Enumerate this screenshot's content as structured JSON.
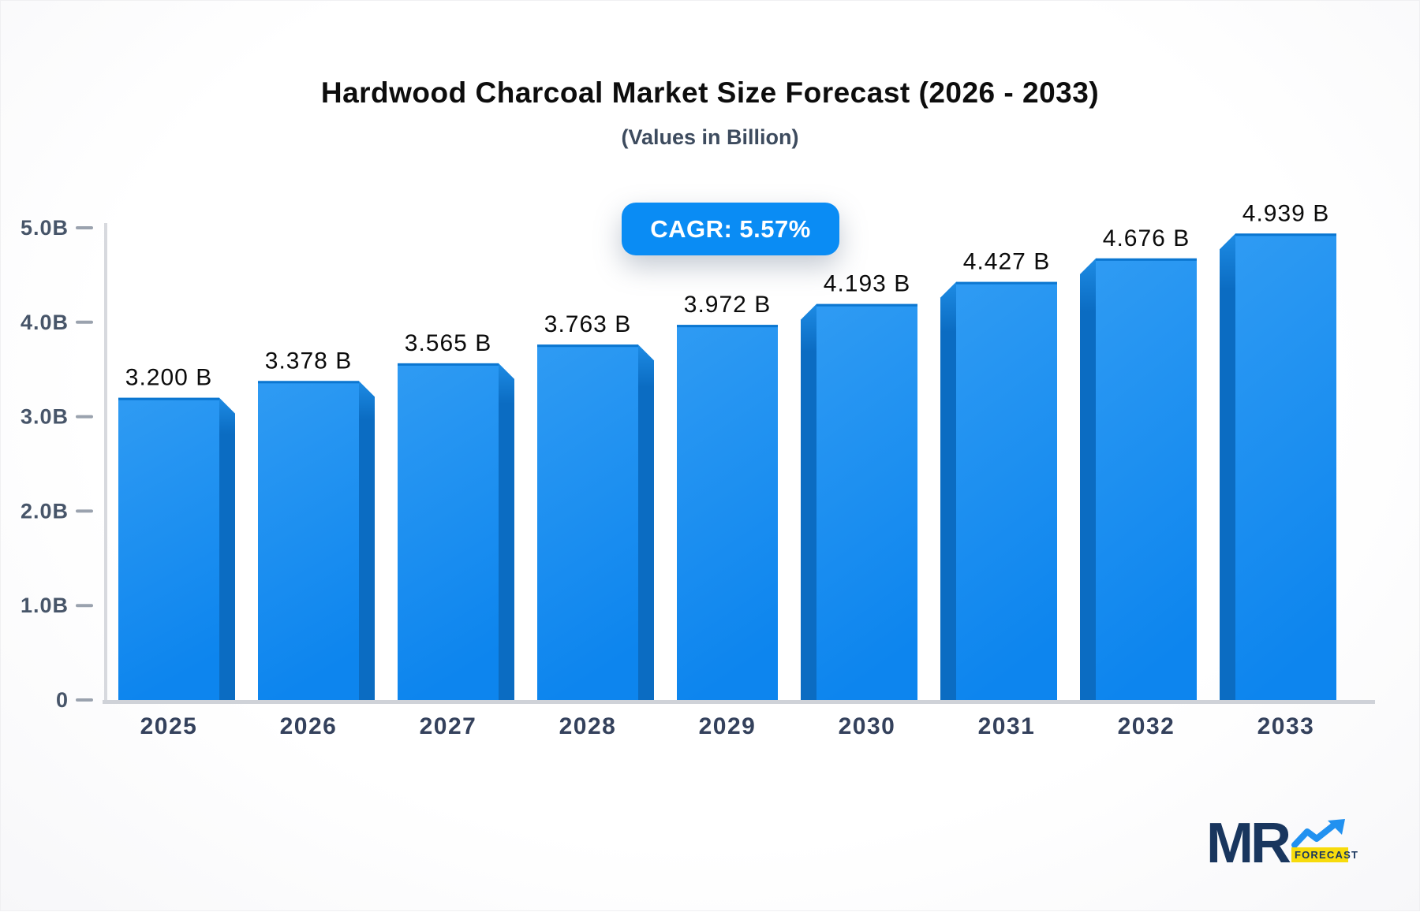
{
  "header": {
    "title": "Hardwood Charcoal Market Size Forecast (2026 - 2033)",
    "subtitle": "(Values in Billion)"
  },
  "badge": {
    "label": "CAGR: 5.57%"
  },
  "chart_data": {
    "type": "bar",
    "title": "Hardwood Charcoal Market Size Forecast (2026 - 2033)",
    "subtitle": "(Values in Billion)",
    "categories": [
      "2025",
      "2026",
      "2027",
      "2028",
      "2029",
      "2030",
      "2031",
      "2032",
      "2033"
    ],
    "values": [
      3.2,
      3.378,
      3.565,
      3.763,
      3.972,
      4.193,
      4.427,
      4.676,
      4.939
    ],
    "value_labels": [
      "3.200 B",
      "3.378 B",
      "3.565 B",
      "3.763 B",
      "3.972 B",
      "4.193 B",
      "4.427 B",
      "4.676 B",
      "4.939 B"
    ],
    "xlabel": "",
    "ylabel": "",
    "ylim": [
      0,
      5
    ],
    "yticks": [
      {
        "label": "5.0B",
        "value": 5.0
      },
      {
        "label": "4.0B",
        "value": 4.0
      },
      {
        "label": "3.0B",
        "value": 3.0
      },
      {
        "label": "2.0B",
        "value": 2.0
      },
      {
        "label": "1.0B",
        "value": 1.0
      },
      {
        "label": "0",
        "value": 0.0
      }
    ],
    "grid": false,
    "legend": "none",
    "annotation": "CAGR: 5.57%"
  },
  "colors": {
    "bar_face_top": "#2F9BF3",
    "bar_face_bottom": "#0D85EE",
    "bar_side_top": "#1D8BE4",
    "bar_side_bottom": "#0B6CC2",
    "bar_top_edge": "#0B76D0",
    "badge_bg": "#0A8CF4",
    "axis_line": "#D7D9DE",
    "baseline": "#CFD2D8",
    "tick": "#9AA2AE",
    "ytick_text": "#475569",
    "xtick_text": "#34415C",
    "value_text": "#0B0B0B",
    "logo_navy": "#19365E",
    "logo_blue": "#2191F0",
    "logo_yellow": "#F7DB0C"
  },
  "logo": {
    "mr": "MR",
    "forecast": "FORECAST"
  }
}
